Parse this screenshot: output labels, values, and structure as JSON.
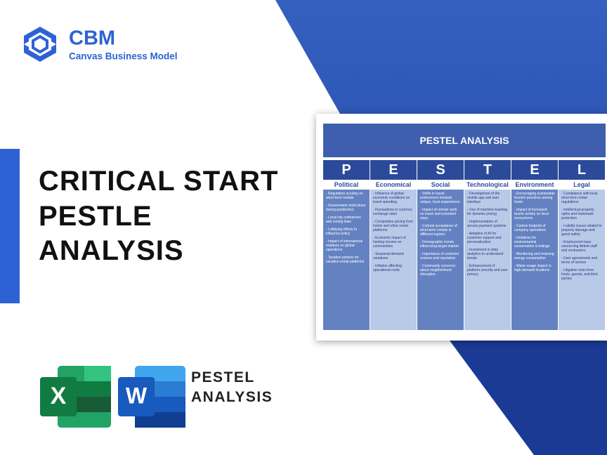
{
  "logo": {
    "short": "CBM",
    "name": "Canvas Business Model"
  },
  "title": {
    "lines": [
      "CRITICAL START",
      "PESTLE",
      "ANALYSIS"
    ]
  },
  "card": {
    "title": "PESTEL ANALYSIS",
    "columns": [
      {
        "letter": "P",
        "label": "Political",
        "items": [
          "- Regulatory scrutiny on short-term rentals",
          "- Government restrictions during pandemics",
          "- Local city ordinances and zoning laws",
          "- Lobbying efforts to influence policy",
          "- Impact of international relations on global operations",
          "- Taxation policies for vacation rental platforms"
        ]
      },
      {
        "letter": "E",
        "label": "Economical",
        "items": [
          "- Influence of global economic conditions on travel spending",
          "- Fluctuations in currency exchange rates",
          "- Competitive pricing from hotels and other rental platforms",
          "- Economic impact of hosting income on communities",
          "- Seasonal demand variations",
          "- Inflation affecting operational costs"
        ]
      },
      {
        "letter": "S",
        "label": "Social",
        "items": [
          "- Shifts in travel preferences towards unique, local experiences",
          "- Impact of remote work on travel and extended stays",
          "- Cultural acceptance of short-term rentals in different regions",
          "- Demographic trends influencing target market",
          "- Importance of customer reviews and reputation",
          "- Community concerns about neighborhood disruption"
        ]
      },
      {
        "letter": "T",
        "label": "Technological",
        "items": [
          "- Development of the mobile app and user interface",
          "- Use of machine learning for dynamic pricing",
          "- Implementation of secure payment systems",
          "- Adoption of AI for customer support and personalization",
          "- Investment in data analytics to understand trends",
          "- Enhancement of platform security and user privacy"
        ]
      },
      {
        "letter": "E",
        "label": "Environment",
        "items": [
          "- Encouraging sustainable tourism practices among hosts",
          "- Impact of increased tourist activity on local ecosystems",
          "- Carbon footprint of company operations",
          "- Initiatives for environmental conservation in listings",
          "- Monitoring and reducing energy consumption",
          "- Water usage impact in high-demand locations"
        ]
      },
      {
        "letter": "L",
        "label": "Legal",
        "items": [
          "- Compliance with local short-term rental regulations",
          "- Intellectual property rights and trademark protection",
          "- Liability issues related to property damage and guest safety",
          "- Employment laws concerning Airbnb staff and contractors",
          "- User agreements and terms of service",
          "- Litigation risks from hosts, guests, and third parties"
        ]
      }
    ]
  },
  "icons": {
    "excel": "X",
    "word": "W"
  },
  "footer": {
    "lines": [
      "PESTEL",
      "ANALYSIS"
    ]
  }
}
